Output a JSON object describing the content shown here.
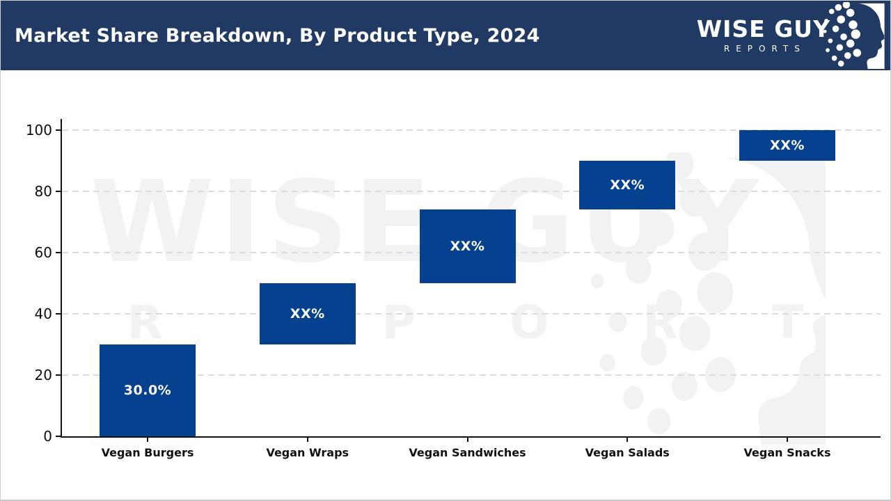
{
  "header": {
    "title": "Market Share Breakdown, By Product Type, 2024",
    "logo": {
      "name_line": "WISE GUY",
      "reports_line": "REPORTS"
    }
  },
  "watermark": {
    "name_line": "WISE GUY",
    "reports_line": "R E P O R T S"
  },
  "chart_data": {
    "type": "bar",
    "subtype": "waterfall-floating-segments",
    "title": "Market Share Breakdown, By Product Type, 2024",
    "categories": [
      "Vegan Burgers",
      "Vegan Wraps",
      "Vegan Sandwiches",
      "Vegan Salads",
      "Vegan Snacks"
    ],
    "segments": [
      {
        "category": "Vegan Burgers",
        "start": 0,
        "end": 30,
        "value": 30,
        "label": "30.0%"
      },
      {
        "category": "Vegan Wraps",
        "start": 30,
        "end": 50,
        "value": 20,
        "label": "XX%"
      },
      {
        "category": "Vegan Sandwiches",
        "start": 50,
        "end": 74,
        "value": 24,
        "label": "XX%"
      },
      {
        "category": "Vegan Salads",
        "start": 74,
        "end": 90,
        "value": 16,
        "label": "XX%"
      },
      {
        "category": "Vegan Snacks",
        "start": 90,
        "end": 100,
        "value": 10,
        "label": "XX%"
      }
    ],
    "yticks": [
      0,
      20,
      40,
      60,
      80,
      100
    ],
    "ylim": [
      0,
      103
    ],
    "xlabel": "",
    "ylabel": "",
    "legend": "none",
    "grid": "horizontal-dashed",
    "colors": {
      "bar": "#05418f",
      "bar_label": "#ffffff",
      "grid": "#dcdcdc",
      "axis": "#111111",
      "header_bg": "#213a63",
      "header_text": "#ffffff",
      "watermark": "#f2f2f4",
      "page_border": "#cfcfcf"
    }
  }
}
